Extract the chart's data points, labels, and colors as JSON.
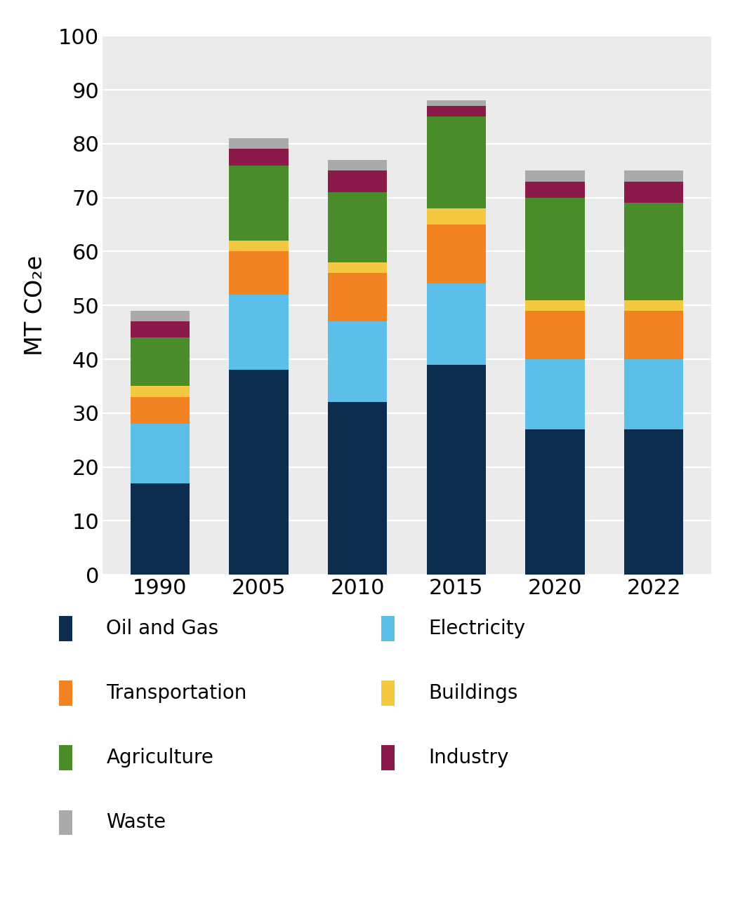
{
  "years": [
    "1990",
    "2005",
    "2010",
    "2015",
    "2020",
    "2022"
  ],
  "segments": {
    "Oil and Gas": [
      17,
      38,
      32,
      39,
      27,
      27
    ],
    "Electricity": [
      11,
      14,
      15,
      15,
      13,
      13
    ],
    "Transportation": [
      5,
      8,
      9,
      11,
      9,
      9
    ],
    "Buildings": [
      2,
      2,
      2,
      3,
      2,
      2
    ],
    "Agriculture": [
      9,
      14,
      13,
      17,
      19,
      18
    ],
    "Industry": [
      3,
      3,
      4,
      2,
      3,
      4
    ],
    "Waste": [
      2,
      2,
      2,
      1,
      2,
      2
    ]
  },
  "colors": {
    "Oil and Gas": "#0d2d4e",
    "Electricity": "#5bbfea",
    "Transportation": "#f28322",
    "Buildings": "#f5c842",
    "Agriculture": "#4a8c2a",
    "Industry": "#8b1a4a",
    "Waste": "#aaaaaa"
  },
  "ylabel": "MT CO₂e",
  "ylim": [
    0,
    100
  ],
  "yticks": [
    0,
    10,
    20,
    30,
    40,
    50,
    60,
    70,
    80,
    90,
    100
  ],
  "plot_bg_color": "#ebebeb",
  "stack_order": [
    "Oil and Gas",
    "Electricity",
    "Transportation",
    "Buildings",
    "Agriculture",
    "Industry",
    "Waste"
  ],
  "legend_col1": [
    "Oil and Gas",
    "Transportation",
    "Agriculture",
    "Waste"
  ],
  "legend_col2": [
    "Electricity",
    "Buildings",
    "Industry"
  ],
  "bar_width": 0.6,
  "figsize": [
    10.44,
    12.8
  ],
  "dpi": 100
}
